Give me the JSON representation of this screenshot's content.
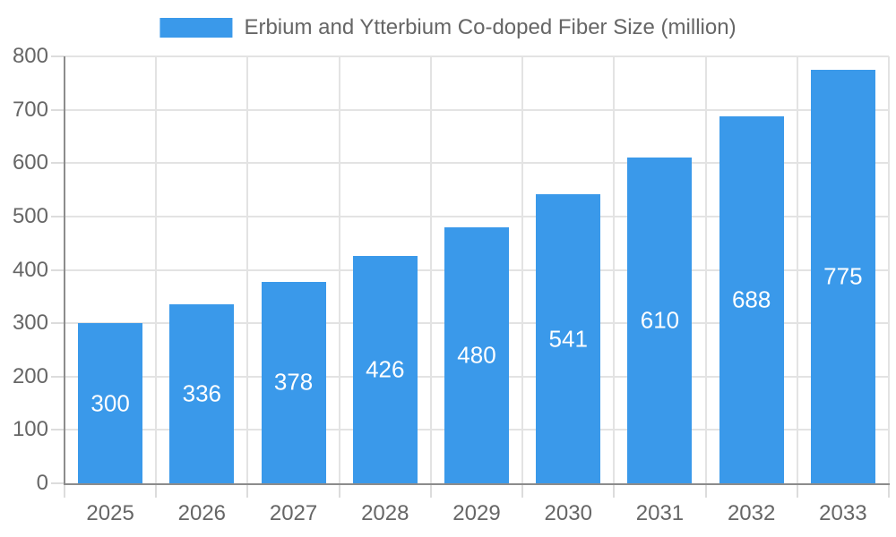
{
  "chart_data": {
    "type": "bar",
    "title": "Erbium and Ytterbium Co-doped Fiber Size (million)",
    "categories": [
      "2025",
      "2026",
      "2027",
      "2028",
      "2029",
      "2030",
      "2031",
      "2032",
      "2033"
    ],
    "values": [
      300,
      336,
      378,
      426,
      480,
      541,
      610,
      688,
      775
    ],
    "xlabel": "",
    "ylabel": "",
    "ylim": [
      0,
      800
    ],
    "ytick_step": 100,
    "y_tick_labels": [
      "0",
      "100",
      "200",
      "300",
      "400",
      "500",
      "600",
      "700",
      "800"
    ],
    "grid": true,
    "legend_position": "top-center",
    "colors": {
      "bar": "#3A99EA",
      "value_label": "#FFFFFF",
      "axis_text": "#666666",
      "gridline": "#E3E3E3",
      "tick": "#DCDCDC",
      "axis_line": "#8C8C8C",
      "background": "#FFFFFF"
    }
  }
}
